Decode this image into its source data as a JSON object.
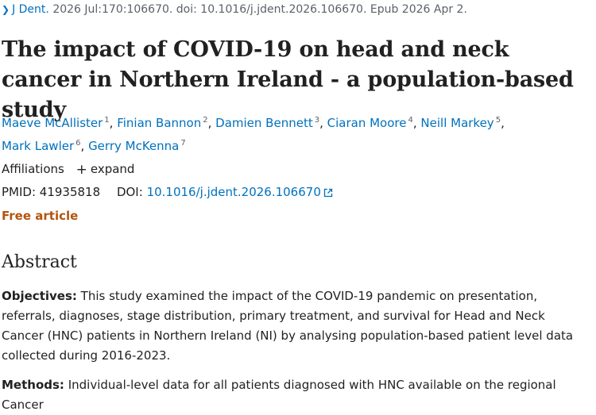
{
  "citation": {
    "journal": "J Dent.",
    "details": "2026 Jul:170:106670. doi: 10.1016/j.jdent.2026.106670. Epub 2026 Apr 2."
  },
  "title": "The impact of COVID-19 on head and neck cancer in Northern Ireland - a population-based study",
  "authors": [
    {
      "name": "Maeve McAllister",
      "aff": "1"
    },
    {
      "name": "Finian Bannon",
      "aff": "2"
    },
    {
      "name": "Damien Bennett",
      "aff": "3"
    },
    {
      "name": "Ciaran Moore",
      "aff": "4"
    },
    {
      "name": "Neill Markey",
      "aff": "5"
    },
    {
      "name": "Mark Lawler",
      "aff": "6"
    },
    {
      "name": "Gerry McKenna",
      "aff": "7"
    }
  ],
  "affiliations": {
    "label": "Affiliations",
    "expand_label": "expand"
  },
  "ids": {
    "pmid_label": "PMID:",
    "pmid": "41935818",
    "doi_label": "DOI:",
    "doi": "10.1016/j.jdent.2026.106670"
  },
  "free_article": "Free article",
  "abstract": {
    "heading": "Abstract",
    "objectives_label": "Objectives:",
    "objectives_text": "This study examined the impact of the COVID-19 pandemic on presentation, referrals, diagnoses, stage distribution, primary treatment, and survival for Head and Neck Cancer (HNC) patients in Northern Ireland (NI) by analysing population-based patient level data collected during 2016-2023.",
    "methods_label": "Methods:",
    "methods_text": "Individual-level data for all patients diagnosed with HNC available on the regional Cancer"
  },
  "icons": {
    "chevron": "chevron-right-icon",
    "plus": "plus-icon",
    "external": "external-link-icon"
  },
  "colors": {
    "link": "#0071bc",
    "free": "#b5530f",
    "text": "#212121",
    "muted": "#5b616b"
  }
}
